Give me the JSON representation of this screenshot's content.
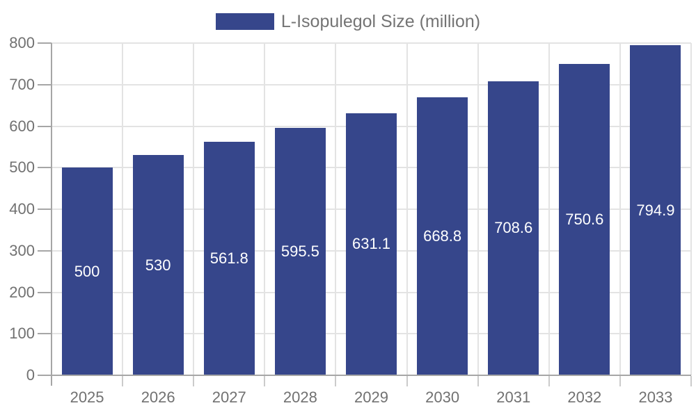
{
  "legend": {
    "label": "L-Isopulegol Size (million)"
  },
  "chart_data": {
    "type": "bar",
    "title": "",
    "categories": [
      "2025",
      "2026",
      "2027",
      "2028",
      "2029",
      "2030",
      "2031",
      "2032",
      "2033"
    ],
    "series": [
      {
        "name": "L-Isopulegol Size (million)",
        "values": [
          500,
          530,
          561.8,
          595.5,
          631.1,
          668.8,
          708.6,
          750.6,
          794.9
        ],
        "value_labels": [
          "500",
          "530",
          "561.8",
          "595.5",
          "631.1",
          "668.8",
          "708.6",
          "750.6",
          "794.9"
        ]
      }
    ],
    "xlabel": "",
    "ylabel": "",
    "ylim": [
      0,
      800
    ],
    "y_ticks": [
      0,
      100,
      200,
      300,
      400,
      500,
      600,
      700,
      800
    ],
    "grid": true,
    "legend_position": "top-center",
    "bar_label_position": "inside-middle"
  },
  "colors": {
    "bar": "#36468B",
    "bar_label": "#FFFFFF",
    "axis_line": "#A6A6A6",
    "grid_line": "#E3E3E3",
    "x_tick": "#CBCBCB",
    "axis_text": "#717171",
    "legend_text": "#747474",
    "background": "#FFFFFF"
  }
}
